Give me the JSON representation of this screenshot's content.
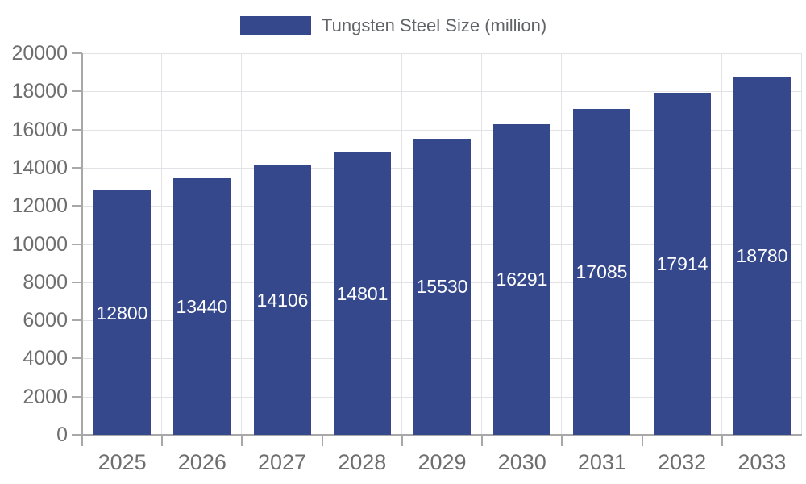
{
  "legend": {
    "label": "Tungsten Steel Size (million)"
  },
  "chart_data": {
    "type": "bar",
    "title": "Tungsten Steel Size (million)",
    "categories": [
      "2025",
      "2026",
      "2027",
      "2028",
      "2029",
      "2030",
      "2031",
      "2032",
      "2033"
    ],
    "values": [
      12800,
      13440,
      14106,
      14801,
      15530,
      16291,
      17085,
      17914,
      18780
    ],
    "xlabel": "",
    "ylabel": "",
    "ylim": [
      0,
      20000
    ],
    "ytick_step": 2000,
    "grid": true,
    "legend_position": "top-center",
    "bar_label_position": "inside-center",
    "colors": {
      "bar": "#35488C",
      "bar_label": "#FFFFFF",
      "grid": "#E2E2E7",
      "axis": "#A8A8A8",
      "tick_label": "#6E6E6E",
      "legend_text": "#606368",
      "background": "#FFFFFF"
    }
  }
}
